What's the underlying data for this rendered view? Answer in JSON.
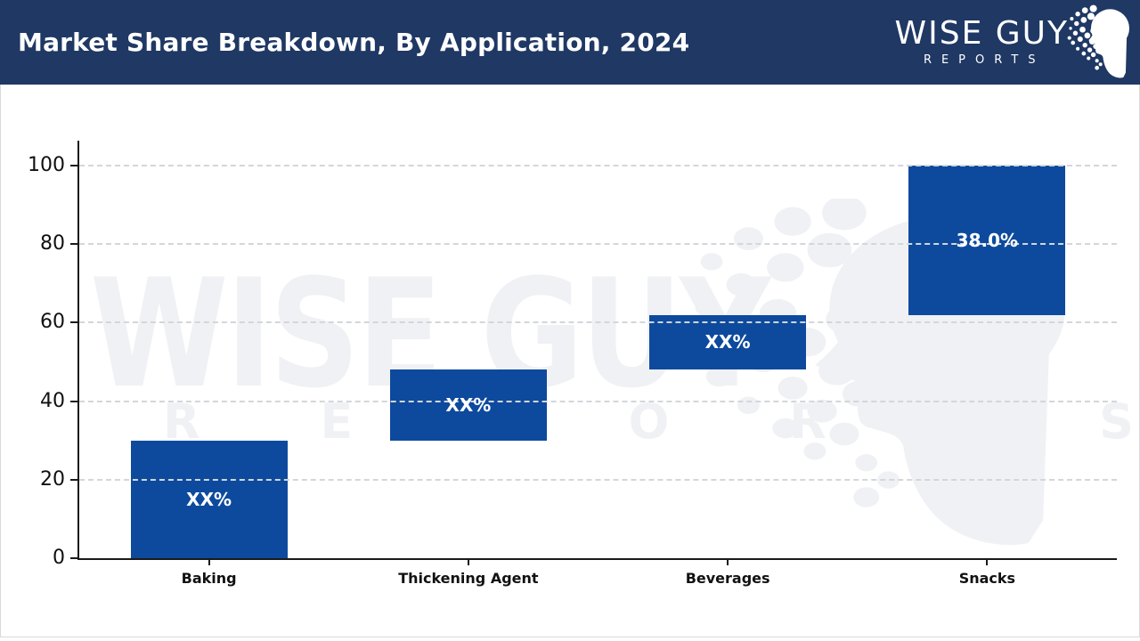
{
  "header": {
    "title": "Market Share Breakdown, By Application, 2024",
    "logo": {
      "line1": "WISE GUY",
      "line2": "REPORTS"
    }
  },
  "watermark": {
    "line1": "WISE GUY",
    "line2": "R E P O R T S"
  },
  "chart_data": {
    "type": "bar",
    "variant": "waterfall-floating-bars",
    "title": "Market Share Breakdown, By Application, 2024",
    "categories": [
      "Baking",
      "Thickening Agent",
      "Beverages",
      "Snacks"
    ],
    "series": [
      {
        "name": "Market Share (%)",
        "segments": [
          {
            "category": "Baking",
            "start": 0,
            "end": 30,
            "label": "XX%"
          },
          {
            "category": "Thickening Agent",
            "start": 30,
            "end": 48,
            "label": "XX%"
          },
          {
            "category": "Beverages",
            "start": 48,
            "end": 62,
            "label": "XX%"
          },
          {
            "category": "Snacks",
            "start": 62,
            "end": 100,
            "label": "38.0%"
          }
        ]
      }
    ],
    "xlabel": "",
    "ylabel": "",
    "yticks": [
      0,
      20,
      40,
      60,
      80,
      100
    ],
    "ylim": [
      0,
      106
    ],
    "grid": "horizontal-dashed, drawn over bars",
    "legend": "none"
  },
  "colors": {
    "header_bg": "#1f3864",
    "bar": "#0d4a9e",
    "bar_label": "#ffffff",
    "grid": "#d3d6db",
    "axis": "#1a1a1a",
    "tick_text": "#111111",
    "watermark": "#f0f1f4",
    "frame_border": "#d9d9d9"
  }
}
